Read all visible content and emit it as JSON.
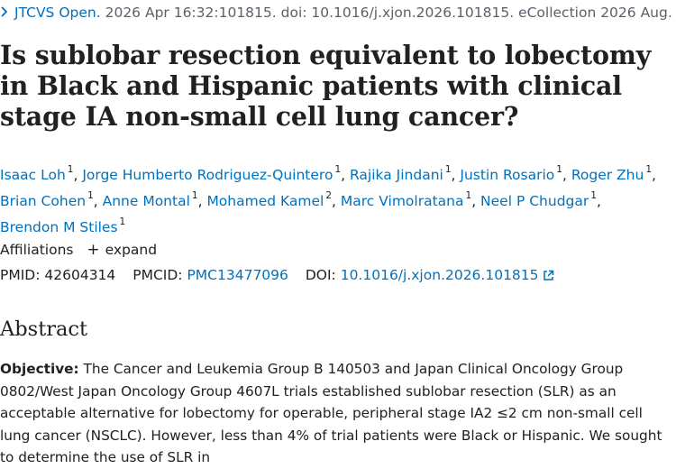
{
  "citation": {
    "journal": "JTCVS Open.",
    "details": "2026 Apr 16:32:101815. doi: 10.1016/j.xjon.2026.101815. eCollection 2026 Aug."
  },
  "title": "Is sublobar resection equivalent to lobectomy in Black and Hispanic patients with clinical stage IA non-small cell lung cancer?",
  "authors": [
    {
      "name": "Isaac Loh",
      "sup": "1"
    },
    {
      "name": "Jorge Humberto Rodriguez-Quintero",
      "sup": "1"
    },
    {
      "name": "Rajika Jindani",
      "sup": "1"
    },
    {
      "name": "Justin Rosario",
      "sup": "1"
    },
    {
      "name": "Roger Zhu",
      "sup": "1"
    },
    {
      "name": "Brian Cohen",
      "sup": "1"
    },
    {
      "name": "Anne Montal",
      "sup": "1"
    },
    {
      "name": "Mohamed Kamel",
      "sup": "2"
    },
    {
      "name": "Marc Vimolratana",
      "sup": "1"
    },
    {
      "name": "Neel P Chudgar",
      "sup": "1"
    },
    {
      "name": "Brendon M Stiles",
      "sup": "1"
    }
  ],
  "affiliations": {
    "label": "Affiliations",
    "expand_label": "expand"
  },
  "ids": {
    "pmid_label": "PMID:",
    "pmid": "42604314",
    "pmcid_label": "PMCID:",
    "pmcid": "PMC13477096",
    "doi_label": "DOI:",
    "doi": "10.1016/j.xjon.2026.101815"
  },
  "abstract": {
    "heading": "Abstract",
    "objective_label": "Objective:",
    "objective_text": "The Cancer and Leukemia Group B 140503 and Japan Clinical Oncology Group 0802/West Japan Oncology Group 4607L trials established sublobar resection (SLR) as an acceptable alternative for lobectomy for operable, peripheral stage IA2 ≤2 cm non-small cell lung cancer (NSCLC). However, less than 4% of trial patients were Black or Hispanic. We sought to determine the use of SLR in"
  },
  "colors": {
    "link": "#0071bc",
    "text": "#212121",
    "muted": "#5b616b"
  },
  "icons": {
    "breadcrumb": "chevron-right-icon",
    "expand": "plus-icon",
    "external": "external-link-icon"
  }
}
